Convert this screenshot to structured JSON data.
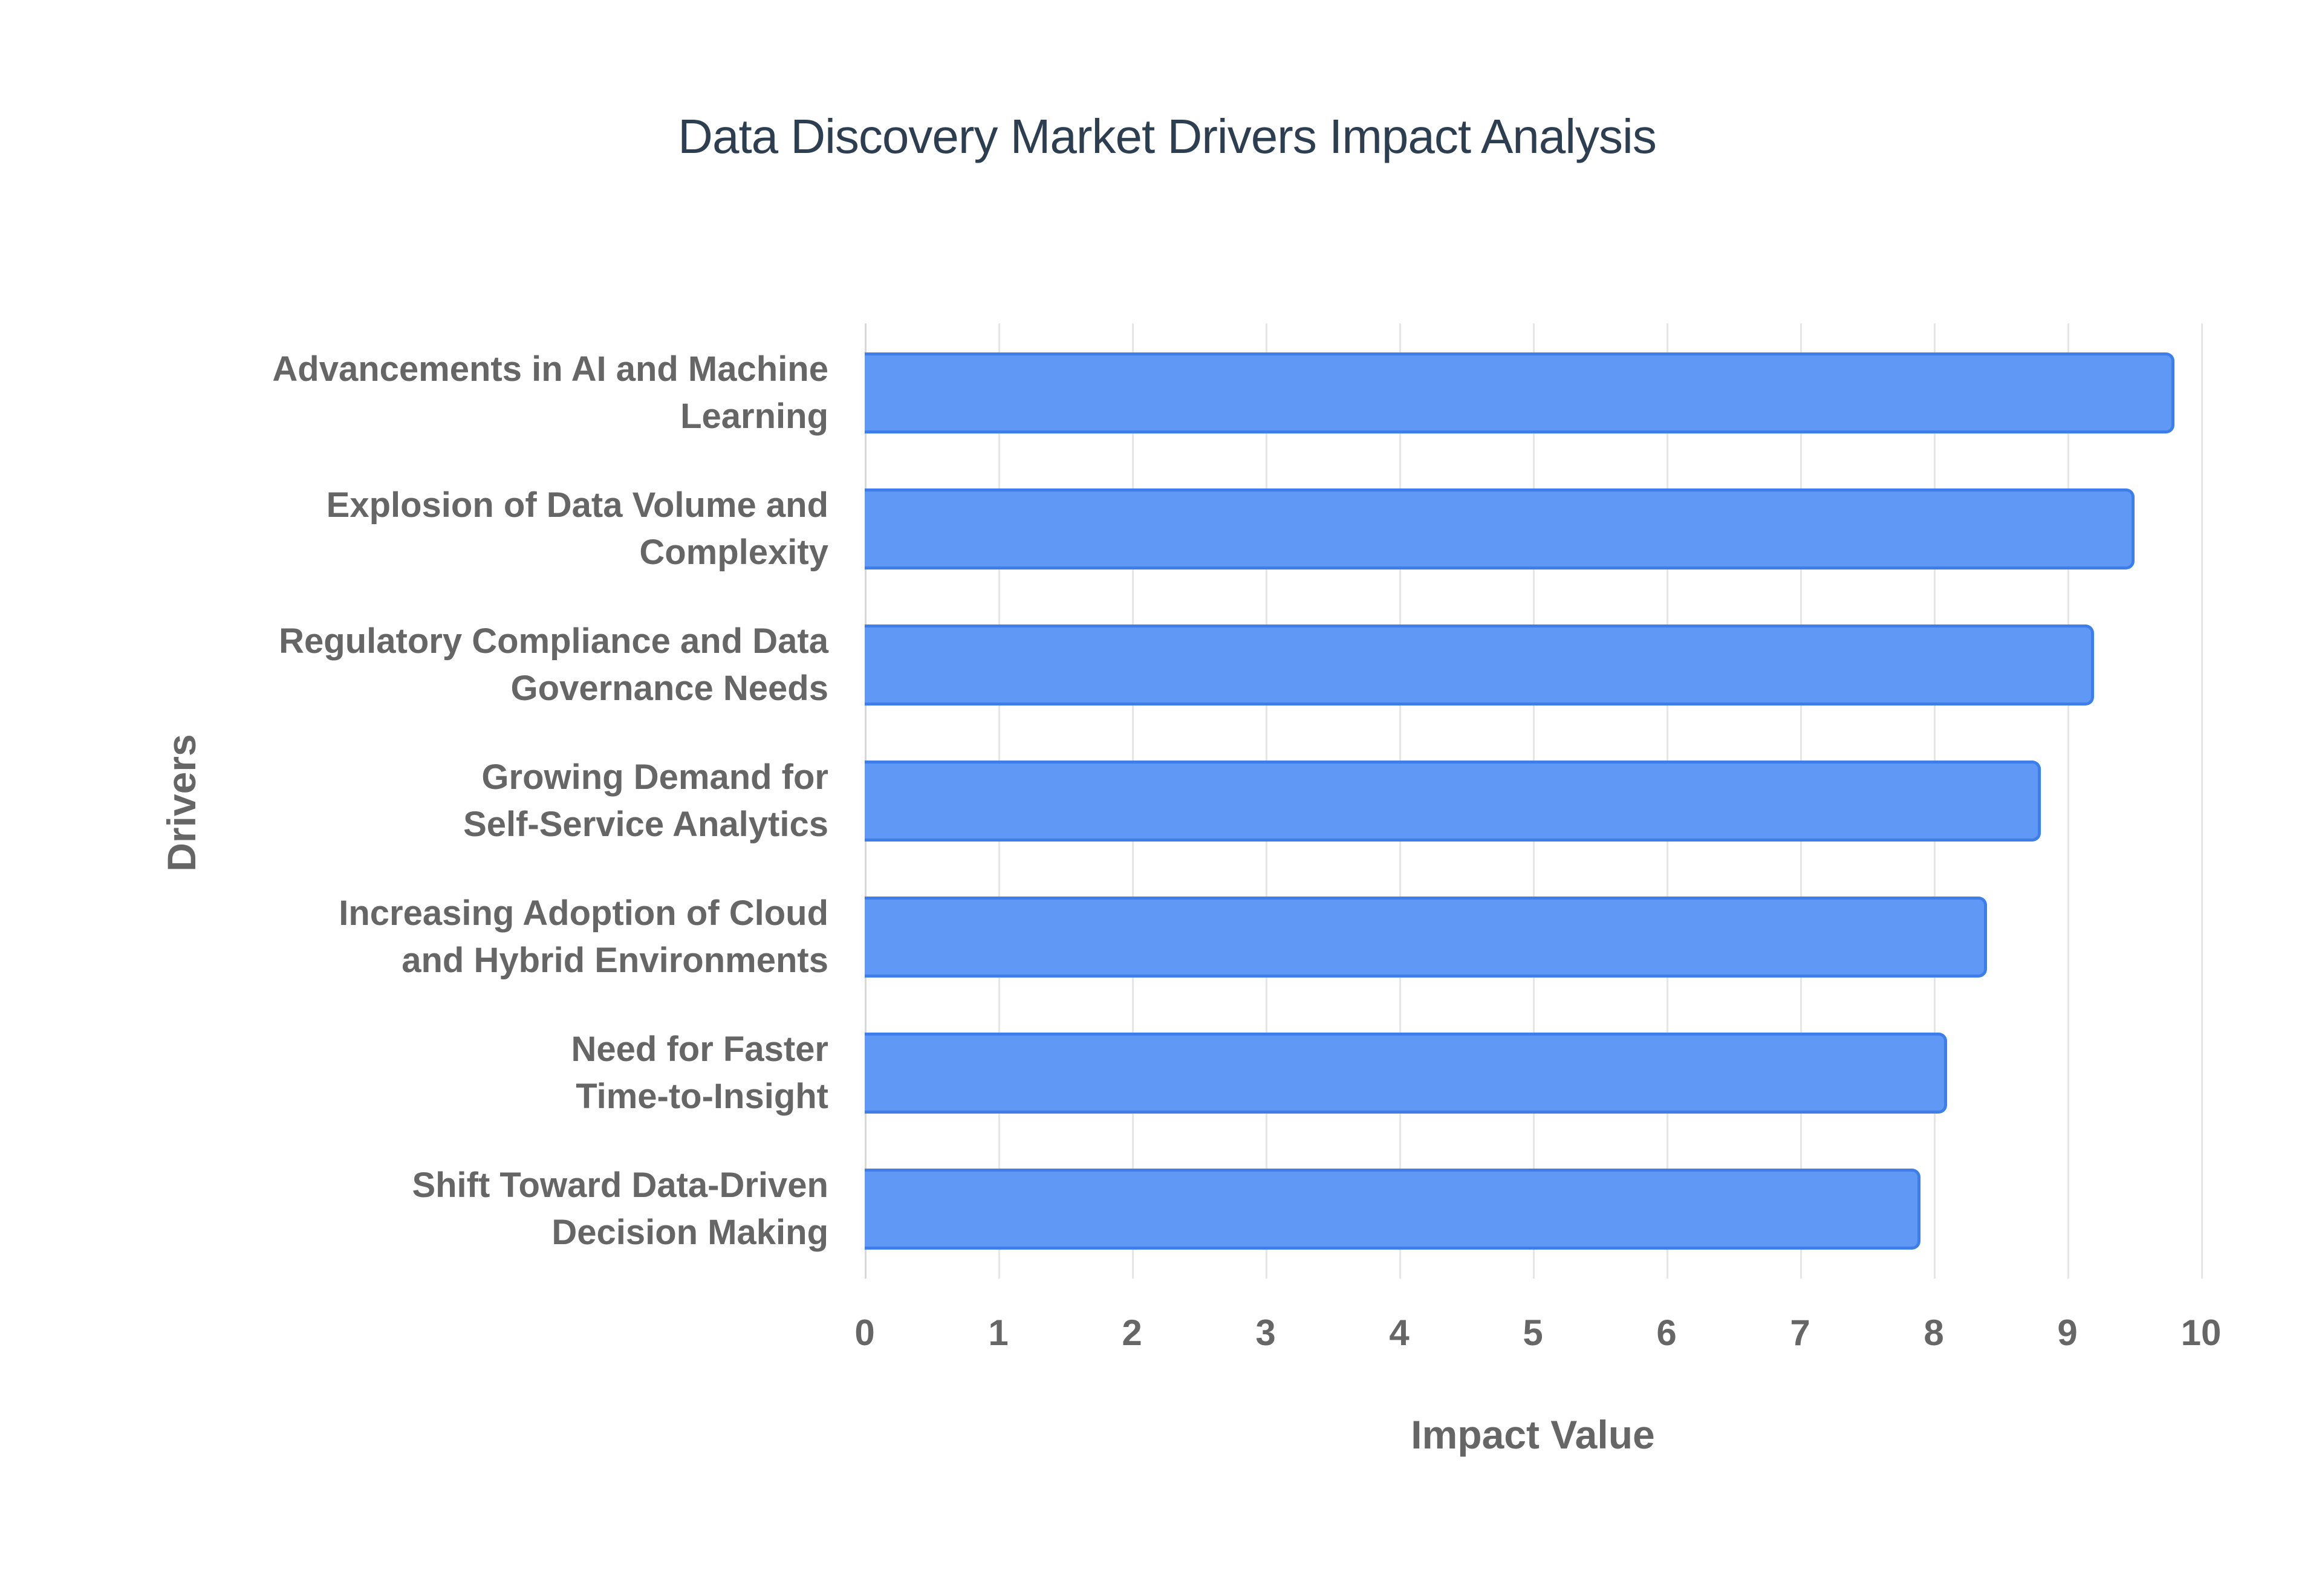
{
  "chart_data": {
    "type": "bar",
    "orientation": "horizontal",
    "title": "Data Discovery Market Drivers Impact Analysis",
    "xlabel": "Impact Value",
    "ylabel": "Drivers",
    "xlim": [
      0,
      10
    ],
    "xticks": [
      "0",
      "1",
      "2",
      "3",
      "4",
      "5",
      "6",
      "7",
      "8",
      "9",
      "10"
    ],
    "grid": true,
    "categories": [
      "Advancements in AI and Machine Learning",
      "Explosion of Data Volume and Complexity",
      "Regulatory Compliance and Data Governance Needs",
      "Growing Demand for Self-Service Analytics",
      "Increasing Adoption of Cloud and Hybrid Environments",
      "Need for Faster Time-to-Insight",
      "Shift Toward Data-Driven Decision Making"
    ],
    "values": [
      9.8,
      9.5,
      9.2,
      8.8,
      8.4,
      8.1,
      7.9
    ],
    "bar_color": "#5f99f5",
    "bar_border_color": "#3f7ee8"
  },
  "labels": [
    [
      "Advancements in AI and Machine",
      "Learning"
    ],
    [
      "Explosion of Data Volume and",
      "Complexity"
    ],
    [
      "Regulatory Compliance and Data",
      "Governance Needs"
    ],
    [
      "Growing Demand for",
      "Self-Service Analytics"
    ],
    [
      "Increasing Adoption of Cloud",
      "and Hybrid Environments"
    ],
    [
      "Need for Faster",
      "Time-to-Insight"
    ],
    [
      "Shift Toward Data-Driven",
      "Decision Making"
    ]
  ]
}
